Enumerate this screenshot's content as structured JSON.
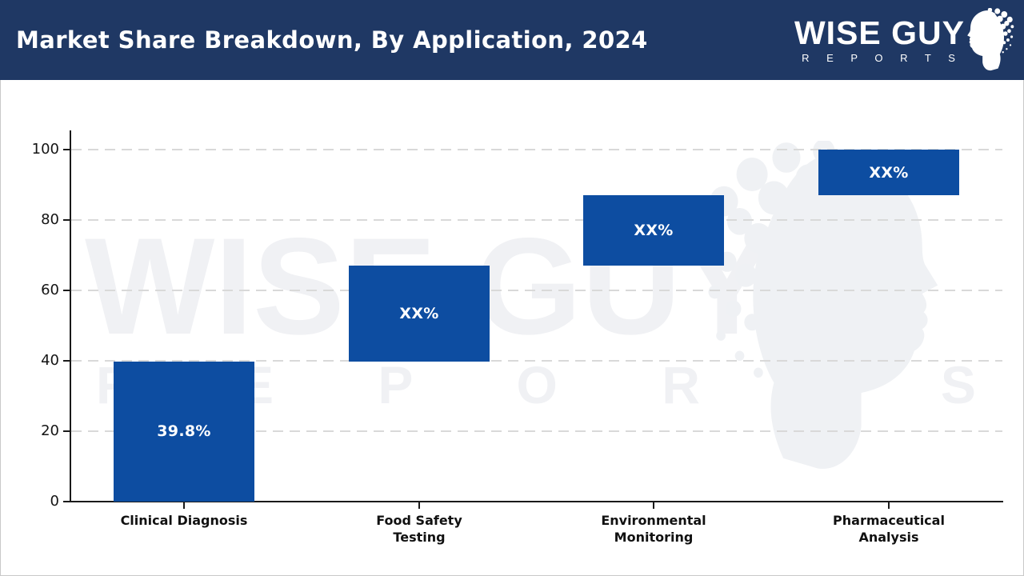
{
  "header": {
    "title": "Market Share Breakdown, By Application, 2024",
    "logo": {
      "line1": "WISE GUY",
      "line2": "R E P O R T S"
    }
  },
  "watermark": {
    "line1": "WISE GUY",
    "line2": "R E P O R T S"
  },
  "chart_data": {
    "type": "bar",
    "subtype": "waterfall",
    "title": "Market Share Breakdown, By Application, 2024",
    "categories": [
      "Clinical Diagnosis",
      "Food Safety Testing",
      "Environmental Monitoring",
      "Pharmaceutical Analysis"
    ],
    "categories_lines": [
      [
        "Clinical Diagnosis"
      ],
      [
        "Food Safety",
        "Testing"
      ],
      [
        "Environmental",
        "Monitoring"
      ],
      [
        "Pharmaceutical",
        "Analysis"
      ]
    ],
    "segments": [
      {
        "category": "Clinical Diagnosis",
        "start": 0,
        "end": 39.8,
        "label": "39.8%"
      },
      {
        "category": "Food Safety Testing",
        "start": 39.8,
        "end": 67,
        "label": "XX%"
      },
      {
        "category": "Environmental Monitoring",
        "start": 67,
        "end": 87,
        "label": "XX%"
      },
      {
        "category": "Pharmaceutical Analysis",
        "start": 87,
        "end": 100,
        "label": "XX%"
      }
    ],
    "xlabel": "",
    "ylabel": "",
    "ylim": [
      0,
      100
    ],
    "yticks": [
      0,
      20,
      40,
      60,
      80,
      100
    ],
    "grid": "dashed-horizontal",
    "legend": "none",
    "bar_color": "#0d4da1",
    "label_color": "#ffffff"
  },
  "colors": {
    "header_bg": "#1f3864",
    "bar": "#0d4da1",
    "watermark": "#f0f1f4",
    "grid": "#d9d9d9",
    "axis": "#1a1a1a",
    "title_text": "#ffffff",
    "tick_text": "#141414"
  }
}
